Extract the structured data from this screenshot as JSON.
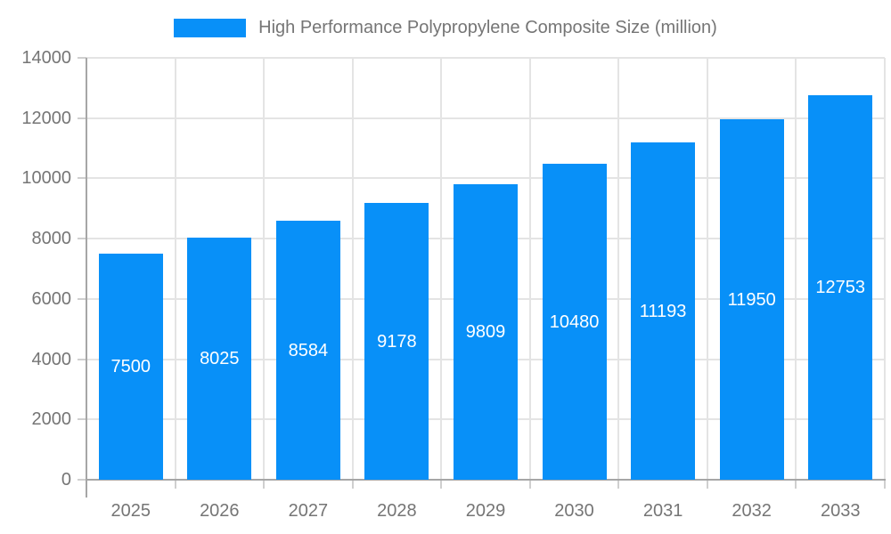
{
  "chart_data": {
    "type": "bar",
    "title": "High Performance Polypropylene Composite Size (million)",
    "legend": {
      "label": "High Performance Polypropylene Composite Size (million)",
      "position": "top"
    },
    "categories": [
      "2025",
      "2026",
      "2027",
      "2028",
      "2029",
      "2030",
      "2031",
      "2032",
      "2033"
    ],
    "values": [
      7500,
      8025,
      8584,
      9178,
      9809,
      10480,
      11193,
      11950,
      12753
    ],
    "value_labels": [
      "7500",
      "8025",
      "8584",
      "9178",
      "9809",
      "10480",
      "11193",
      "11950",
      "12753"
    ],
    "xlabel": "",
    "ylabel": "",
    "ylim": [
      0,
      14000
    ],
    "ytick_step": 2000,
    "yticks": [
      "0",
      "2000",
      "4000",
      "6000",
      "8000",
      "10000",
      "12000",
      "14000"
    ],
    "grid": true,
    "colors": {
      "bar": "#0890f8",
      "bar_value_text": "#ffffff",
      "axis_text": "#757575",
      "legend_text": "#757575",
      "gridline": "#e4e4e4",
      "axis_line": "#a6a6a6",
      "tick_line": "#cfcfcf",
      "background": "#ffffff"
    }
  }
}
